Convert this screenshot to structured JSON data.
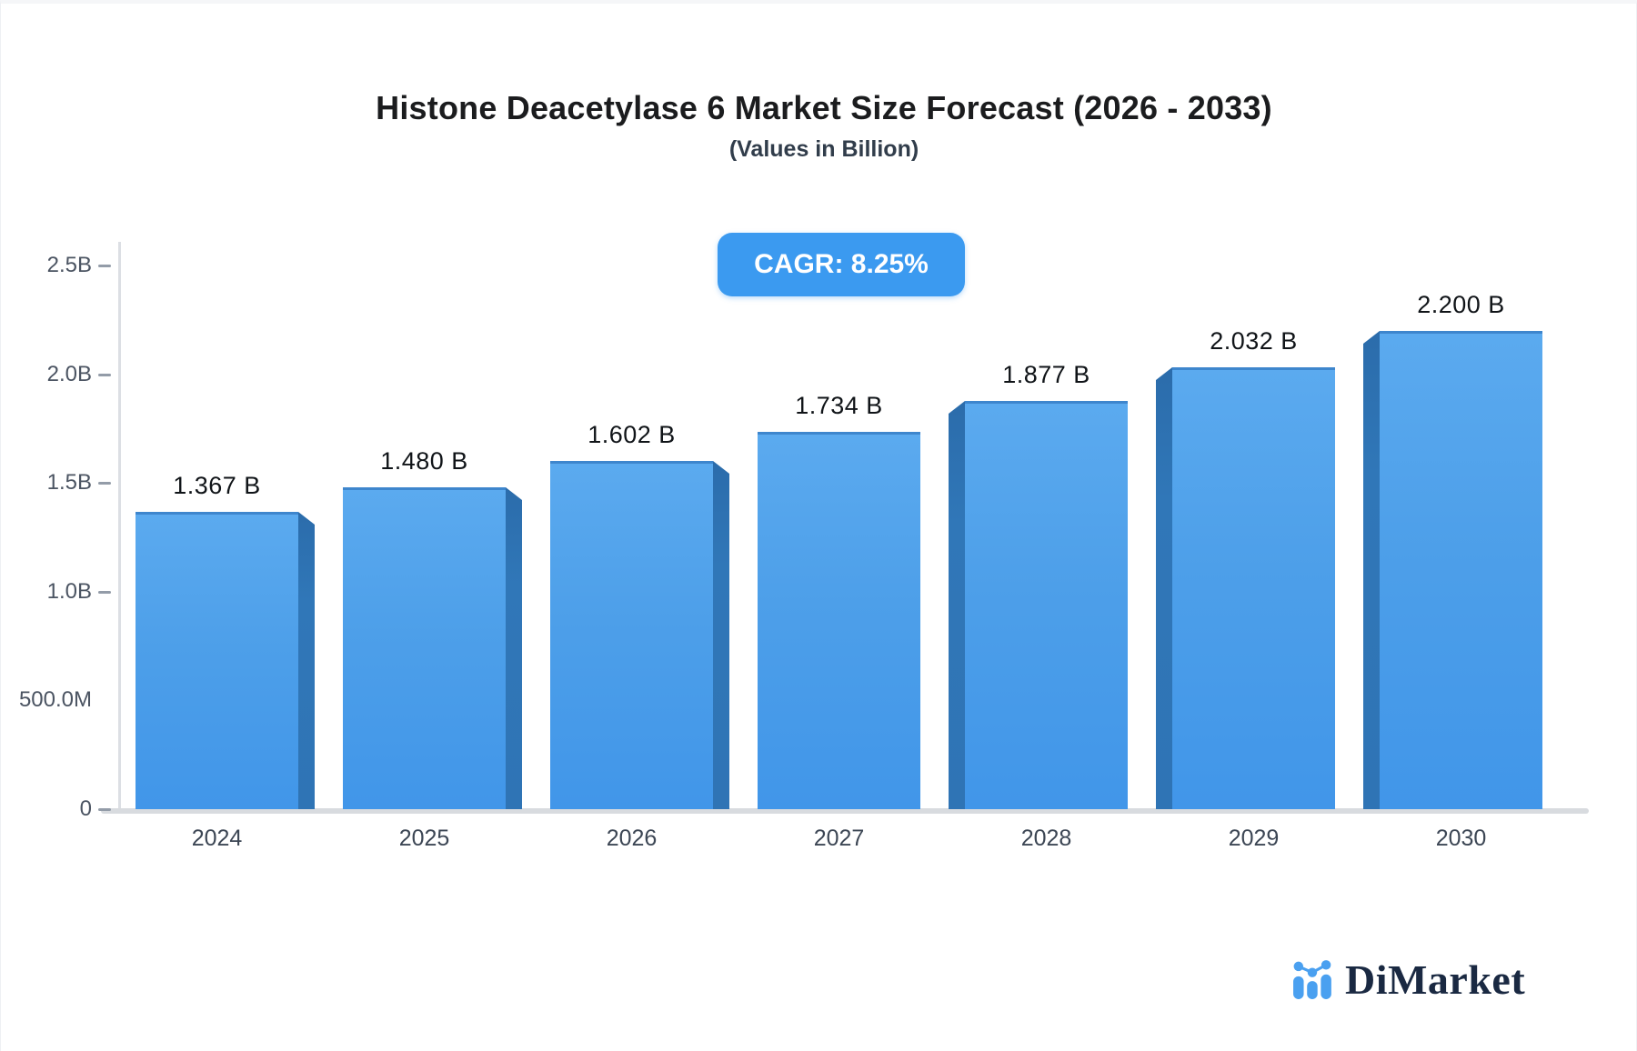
{
  "chart_data": {
    "type": "bar",
    "title": "Histone Deacetylase 6 Market Size Forecast (2026 - 2033)",
    "subtitle": "(Values in Billion)",
    "cagr_badge": "CAGR: 8.25%",
    "categories": [
      "2024",
      "2025",
      "2026",
      "2027",
      "2028",
      "2029",
      "2030"
    ],
    "values": [
      1.367,
      1.48,
      1.602,
      1.734,
      1.877,
      2.032,
      2.2
    ],
    "value_labels": [
      "1.367 B",
      "1.480 B",
      "1.602 B",
      "1.734 B",
      "1.877 B",
      "2.032 B",
      "2.200 B"
    ],
    "xlabel": "",
    "ylabel": "",
    "ylim": [
      0,
      2.5
    ],
    "y_ticks": [
      {
        "label": "0",
        "value": 0,
        "dash": true
      },
      {
        "label": "500.0M",
        "value": 0.5,
        "dash": false
      },
      {
        "label": "1.0B",
        "value": 1.0,
        "dash": true
      },
      {
        "label": "1.5B",
        "value": 1.5,
        "dash": true
      },
      {
        "label": "2.0B",
        "value": 2.0,
        "dash": true
      },
      {
        "label": "2.5B",
        "value": 2.5,
        "dash": true
      }
    ],
    "grid": false,
    "legend": "none",
    "bar_style": "3d-perspective-toward-center"
  },
  "colors": {
    "badge_bg": "#3b9af0",
    "bar_front_top": "#5baaef",
    "bar_front_bottom": "#4196e9",
    "bar_top_edge": "#3e86cd",
    "bar_side": "#2f74b5",
    "axis_line": "#d8dbdf",
    "tick_text": "#4b5462",
    "year_text": "#3c4654",
    "value_text": "#101418",
    "title_text": "#1b1c1e",
    "logo_navy": "#1a2942",
    "logo_blue": "#4aa0f0"
  },
  "logo": {
    "text": "DiMarket",
    "icon": "bar-line-chart-icon"
  }
}
